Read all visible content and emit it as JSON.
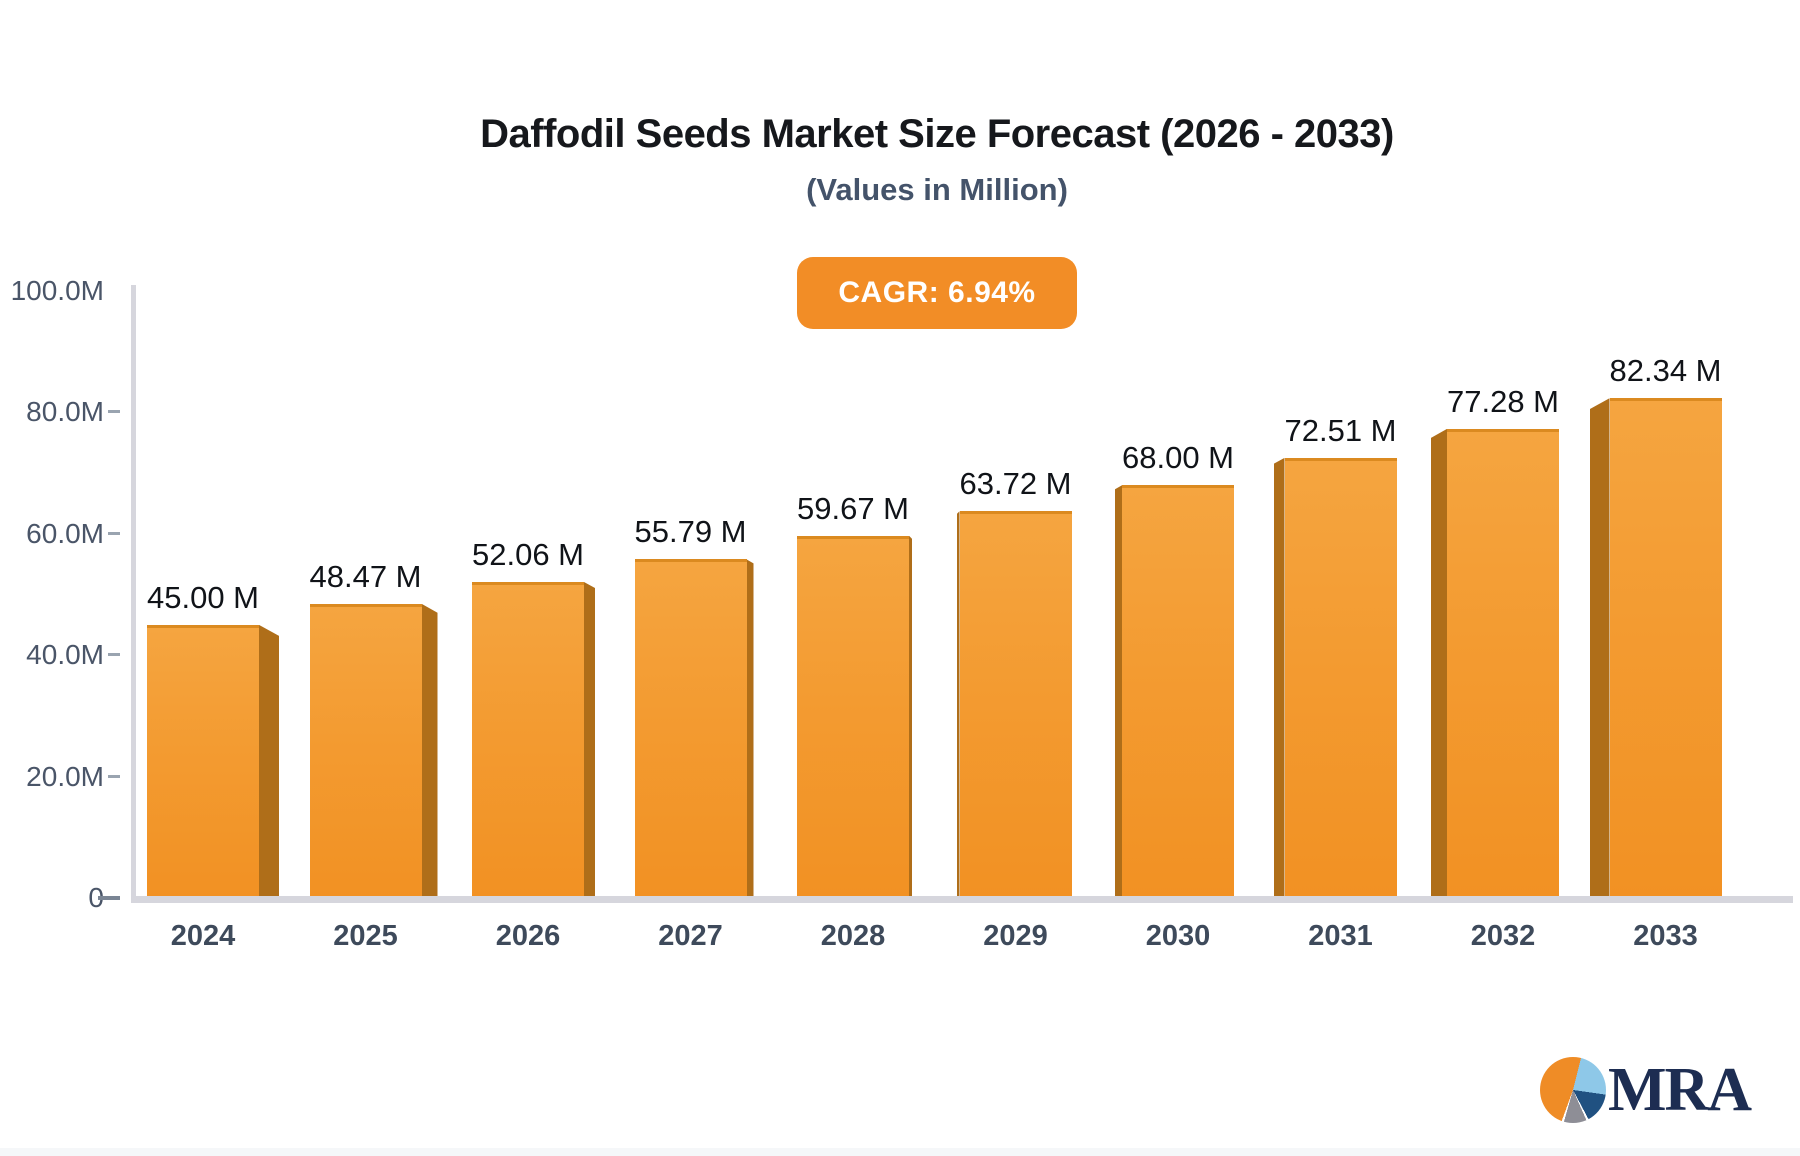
{
  "title": "Daffodil Seeds Market Size Forecast (2026 - 2033)",
  "subtitle": "(Values in Million)",
  "cagr_badge_label": "CAGR: 6.94%",
  "chart_data": {
    "type": "bar",
    "title": "Daffodil Seeds Market Size Forecast (2026 - 2033)",
    "subtitle": "(Values in Million)",
    "cagr": "6.94%",
    "unit": "Million",
    "categories": [
      "2024",
      "2025",
      "2026",
      "2027",
      "2028",
      "2029",
      "2030",
      "2031",
      "2032",
      "2033"
    ],
    "values": [
      45.0,
      48.47,
      52.06,
      55.79,
      59.67,
      63.72,
      68.0,
      72.51,
      77.28,
      82.34
    ],
    "value_labels": [
      "45.00 M",
      "48.47 M",
      "52.06 M",
      "55.79 M",
      "59.67 M",
      "63.72 M",
      "68.00 M",
      "72.51 M",
      "77.28 M",
      "82.34 M"
    ],
    "y_axis": {
      "ylim": [
        0,
        100
      ],
      "ticks": [
        0,
        20,
        40,
        60,
        80,
        100
      ],
      "tick_labels": [
        "0",
        "20.0M",
        "40.0M",
        "60.0M",
        "80.0M",
        "100.0M"
      ]
    },
    "grid": false,
    "legend": false,
    "style": "3d-column",
    "colors": {
      "bar_face_top": "#f5a540",
      "bar_face_bottom": "#f29123",
      "bar_top_edge": "#db8a20",
      "bar_side": "#af6e19",
      "axis": "#d6d6dd",
      "y_tick_text": "#4a5568",
      "x_tick_text": "#3e4a5b",
      "value_text": "#101318",
      "badge_bg": "#f28d26",
      "badge_text": "#ffffff",
      "title_text": "#16181c",
      "subtitle_text": "#44536a"
    }
  },
  "logo": {
    "text": "MRA",
    "pie_colors": {
      "orange": "#ef8c26",
      "light_blue": "#8ec8e8",
      "navy": "#205181",
      "gray": "#8e8e96"
    }
  }
}
